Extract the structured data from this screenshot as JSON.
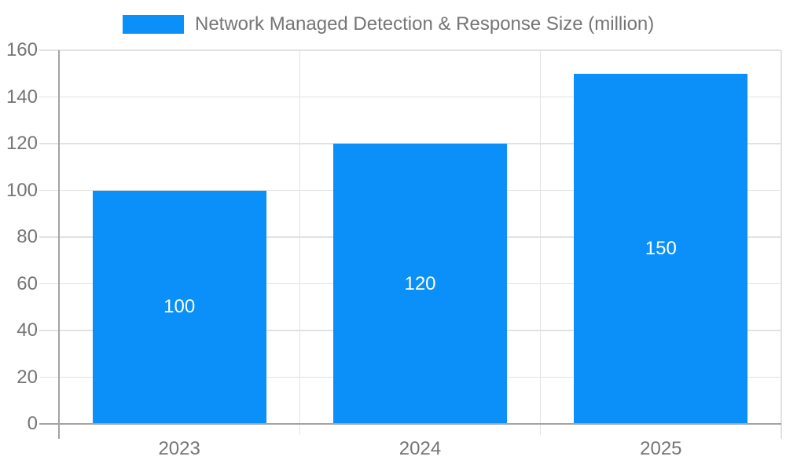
{
  "chart_data": {
    "type": "bar",
    "title": "Network Managed Detection & Response Size (million)",
    "legend": {
      "position": "top",
      "entries": [
        "Network Managed Detection & Response Size (million)"
      ]
    },
    "categories": [
      "2023",
      "2024",
      "2025"
    ],
    "series": [
      {
        "name": "Network Managed Detection & Response Size (million)",
        "values": [
          100,
          120,
          150
        ]
      }
    ],
    "bar_labels": [
      "100",
      "120",
      "150"
    ],
    "xlabel": "",
    "ylabel": "",
    "ylim": [
      0,
      160
    ],
    "yticks": [
      0,
      20,
      40,
      60,
      80,
      100,
      120,
      140,
      160
    ],
    "grid": true,
    "colors": {
      "bar": "#0a90f8",
      "bar_label_text": "#ffffff",
      "axis_text": "#757575",
      "title_text": "#757575",
      "gridline": "#e2e2e2",
      "axis_line": "#a3a3a3",
      "background": "#ffffff"
    }
  }
}
